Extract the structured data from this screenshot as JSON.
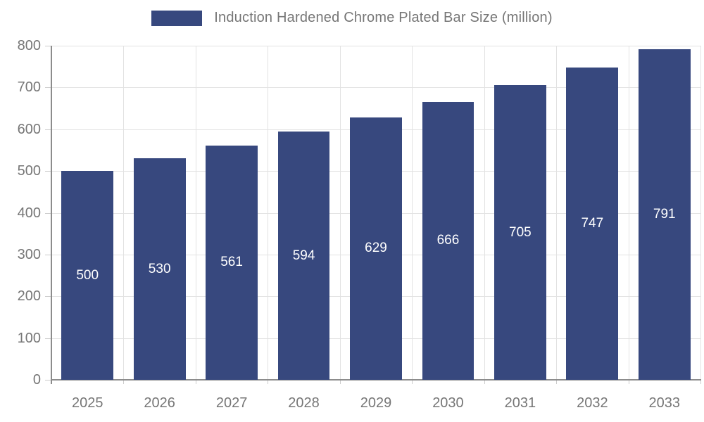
{
  "chart_data": {
    "type": "bar",
    "title": "",
    "series_name": "Induction Hardened Chrome Plated Bar Size (million)",
    "categories": [
      "2025",
      "2026",
      "2027",
      "2028",
      "2029",
      "2030",
      "2031",
      "2032",
      "2033"
    ],
    "values": [
      500,
      530,
      561,
      594,
      629,
      666,
      705,
      747,
      791
    ],
    "xlabel": "",
    "ylabel": "",
    "ylim": [
      0,
      800
    ],
    "yticks": [
      0,
      100,
      200,
      300,
      400,
      500,
      600,
      700,
      800
    ],
    "grid": true,
    "legend_position": "top-center",
    "bar_label_position": "inside-center",
    "colors": {
      "bar": "#37487e",
      "bar_value_label": "#ffffff",
      "axis_line": "#8c8c8c",
      "gridline": "#e2e2e2",
      "tick_mark": "#cccccc",
      "tick_label": "#767676",
      "legend_text": "#767676",
      "background": "#ffffff"
    }
  }
}
